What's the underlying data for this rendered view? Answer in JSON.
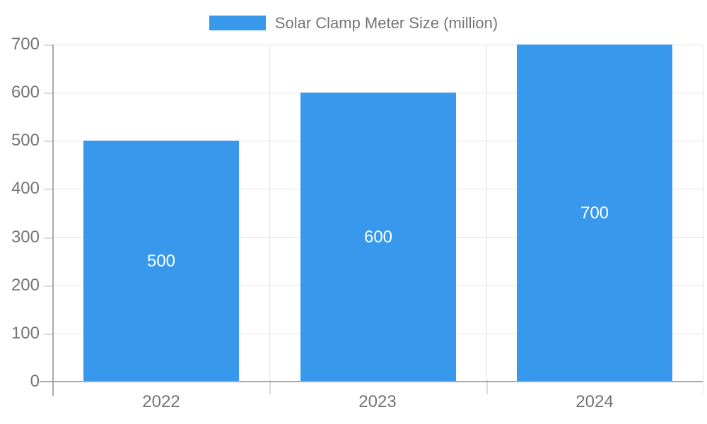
{
  "legend": {
    "label": "Solar Clamp Meter Size (million)"
  },
  "chart_data": {
    "type": "bar",
    "title": "Solar Clamp Meter Size (million)",
    "categories": [
      "2022",
      "2023",
      "2024"
    ],
    "values": [
      500,
      600,
      700
    ],
    "data_labels": [
      "500",
      "600",
      "700"
    ],
    "xlabel": "",
    "ylabel": "",
    "ylim": [
      0,
      700
    ],
    "ytick_step": 100,
    "ytick_labels": [
      "0",
      "100",
      "200",
      "300",
      "400",
      "500",
      "600",
      "700"
    ],
    "grid": true,
    "legend_position": "top-center",
    "colors": {
      "bar": "#3899ec",
      "grid": "#e4e4e4",
      "axis": "#a9a9a9",
      "tick": "#dcdcdc",
      "text": "#757575",
      "data_label": "#ffffff",
      "background": "#ffffff"
    }
  }
}
